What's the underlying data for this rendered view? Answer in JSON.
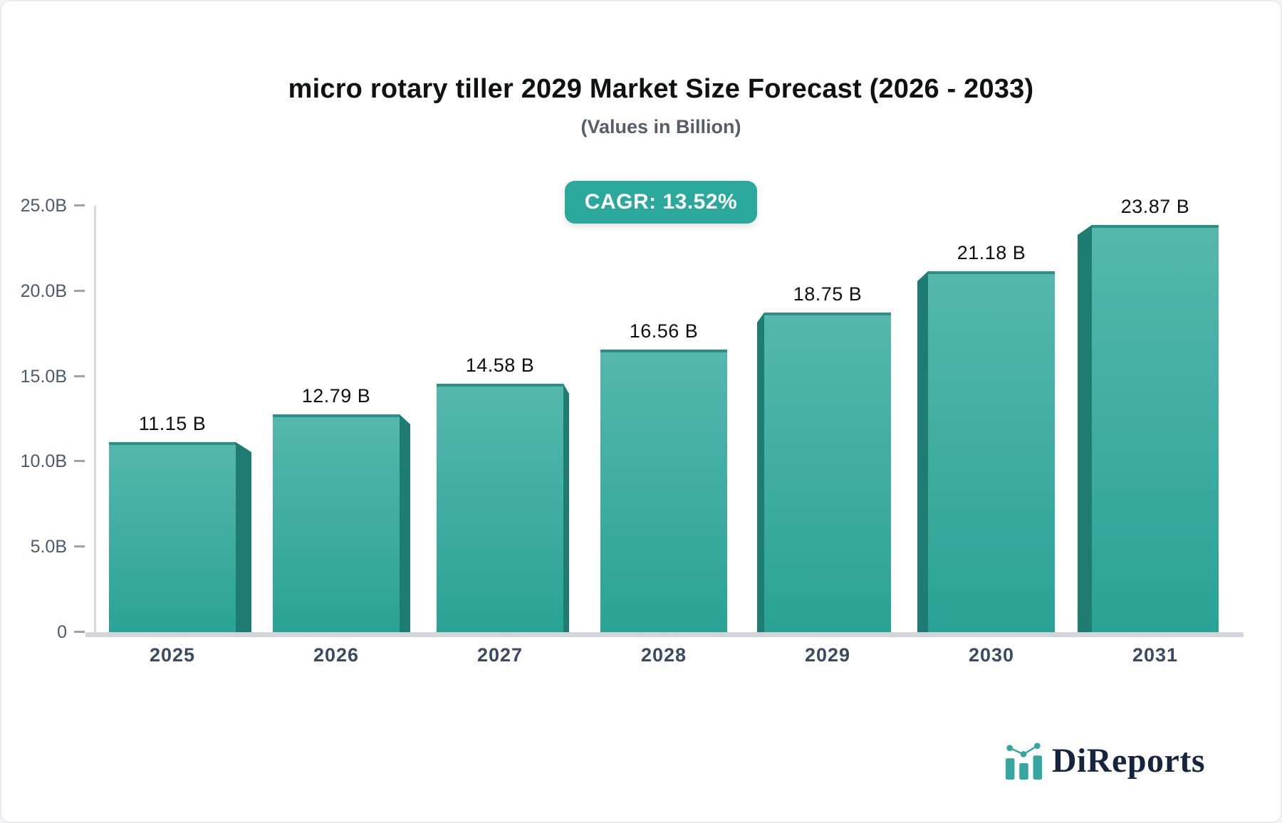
{
  "chart_data": {
    "type": "bar",
    "title": "micro rotary tiller 2029 Market Size Forecast (2026 - 2033)",
    "subtitle": "(Values in Billion)",
    "cagr_label": "CAGR: 13.52%",
    "unit": "Billion",
    "categories": [
      "2025",
      "2026",
      "2027",
      "2028",
      "2029",
      "2030",
      "2031"
    ],
    "values": [
      11.15,
      12.79,
      14.58,
      16.56,
      18.75,
      21.18,
      23.87
    ],
    "value_labels": [
      "11.15 B",
      "12.79 B",
      "14.58 B",
      "16.56 B",
      "18.75 B",
      "21.18 B",
      "23.87 B"
    ],
    "ylim": [
      0,
      25
    ],
    "yticks": [
      {
        "value": 0,
        "label": "0"
      },
      {
        "value": 5,
        "label": "5.0B"
      },
      {
        "value": 10,
        "label": "10.0B"
      },
      {
        "value": 15,
        "label": "15.0B"
      },
      {
        "value": 20,
        "label": "20.0B"
      },
      {
        "value": 25,
        "label": "25.0B"
      }
    ],
    "grid": false,
    "legend": false,
    "bar_style": "3d-extruded-toward-center"
  },
  "logo": {
    "text": "DiReports"
  },
  "colors": {
    "accent": "#2aa89c",
    "bar_top": "#55b7ae",
    "bar_bottom": "#2aa296",
    "bar_side": "#1f7c72",
    "bar_edge": "#2b8f85",
    "axis": "#d9dbe0",
    "baseline": "#d2d5da",
    "tick_dash": "#9aa3ae",
    "ytick_text": "#4b5a6e",
    "xtick_text": "#3b4a63",
    "value_text": "#0e0f11",
    "title": "#101114",
    "subtitle": "#555e6b",
    "logo_navy": "#16253e",
    "logo_teal": "#36a79f",
    "background": "#ffffff"
  }
}
